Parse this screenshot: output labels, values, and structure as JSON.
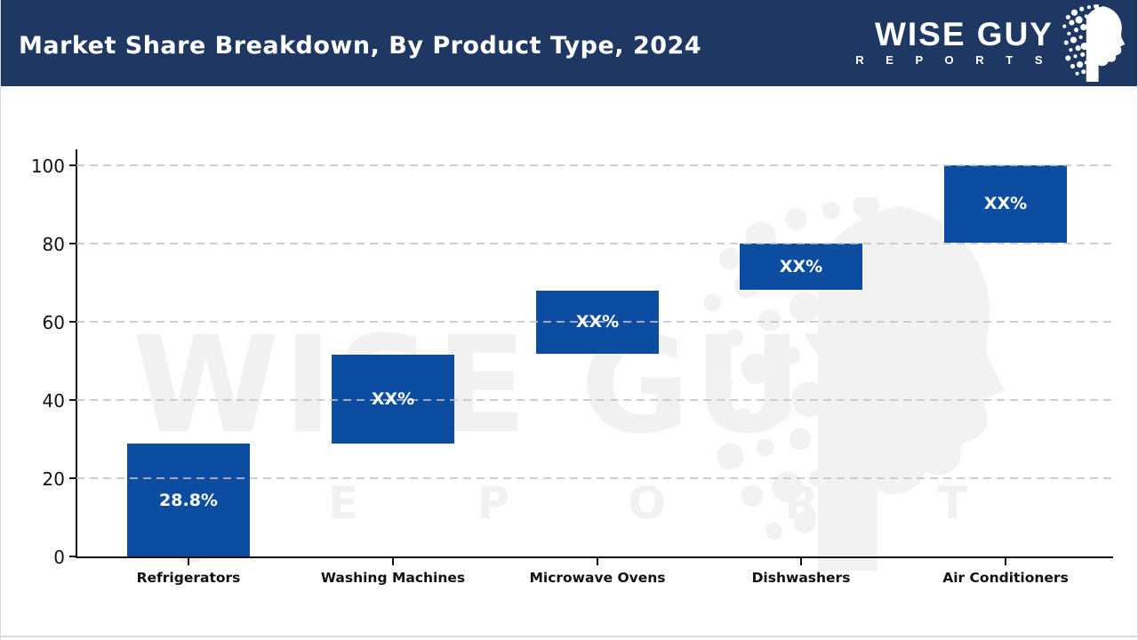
{
  "header": {
    "title": "Market Share Breakdown, By Product Type, 2024",
    "brand_name": "WISE GUY",
    "brand_sub": "R E P O R T S",
    "bg_color": "#1f3863",
    "text_color": "#ffffff"
  },
  "watermark": {
    "line1": "WISE GUY",
    "line2": "R E P O R T S",
    "color": "#f1f1f1"
  },
  "chart_data": {
    "type": "bar",
    "subtype": "waterfall",
    "title": "Market Share Breakdown, By Product Type, 2024",
    "categories": [
      "Refrigerators",
      "Washing Machines",
      "Microwave Ovens",
      "Dishwashers",
      "Air Conditioners"
    ],
    "series": [
      {
        "name": "Market Share (%)",
        "segments": [
          {
            "category": "Refrigerators",
            "start": 0,
            "end": 28.8,
            "label": "28.8%"
          },
          {
            "category": "Washing Machines",
            "start": 28.8,
            "end": 51.5,
            "label": "XX%"
          },
          {
            "category": "Microwave Ovens",
            "start": 51.8,
            "end": 68.0,
            "label": "XX%"
          },
          {
            "category": "Dishwashers",
            "start": 68.2,
            "end": 80.0,
            "label": "XX%"
          },
          {
            "category": "Air Conditioners",
            "start": 80.3,
            "end": 100.0,
            "label": "XX%"
          }
        ]
      }
    ],
    "xlabel": "",
    "ylabel": "",
    "ylim": [
      0,
      105
    ],
    "yticks": [
      0,
      20,
      40,
      60,
      80,
      100
    ],
    "grid": "horizontal-dashed-drawn-over-bars",
    "legend": "none",
    "bar_color": "#0d4da1",
    "bar_label_color": "#ffffff",
    "axis_color": "#111111",
    "grid_color": "#c8c8c8"
  }
}
